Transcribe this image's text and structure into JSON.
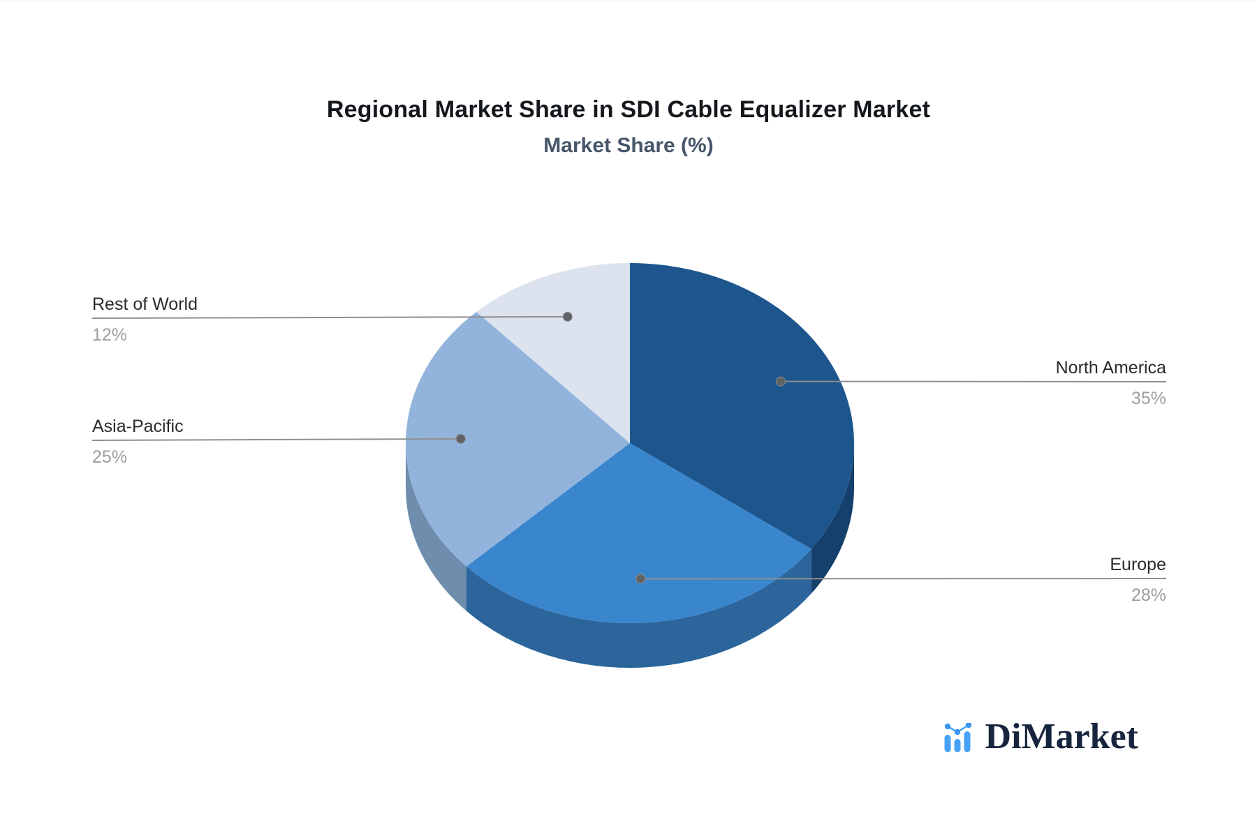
{
  "page": {
    "title": "Regional Market Share in SDI Cable Equalizer Market",
    "subtitle": "Market Share (%)"
  },
  "chart_data": {
    "type": "pie",
    "title": "Regional Market Share in SDI Cable Equalizer Market",
    "subtitle": "Market Share (%)",
    "unit": "%",
    "effect": "3d",
    "start_angle_deg": 0,
    "direction": "clockwise",
    "total": 100,
    "slices": [
      {
        "label": "North America",
        "value": 35,
        "display": "35%",
        "color": "#1d568d",
        "side_color": "#15406b"
      },
      {
        "label": "Europe",
        "value": 28,
        "display": "28%",
        "color": "#3a86cd",
        "side_color": "#2b659c"
      },
      {
        "label": "Asia-Pacific",
        "value": 25,
        "display": "25%",
        "color": "#92b4dc",
        "side_color": "#6f8dac"
      },
      {
        "label": "Rest of World",
        "value": 12,
        "display": "12%",
        "color": "#dce3ee",
        "side_color": "#b9c4d6"
      }
    ],
    "legend_position": "callouts",
    "grid": false
  },
  "style": {
    "leader_line_color": "#8f8f8f",
    "marker_color": "#5f6368",
    "label_color": "#2b2b2b",
    "value_color": "#9e9e9e",
    "title_color": "#14171c",
    "subtitle_color": "#475569",
    "logo_blue": "#47a2f5",
    "logo_navy": "#16243d"
  },
  "logo": {
    "text": "DiMarket",
    "icon": "bar-chart-logo-icon"
  }
}
